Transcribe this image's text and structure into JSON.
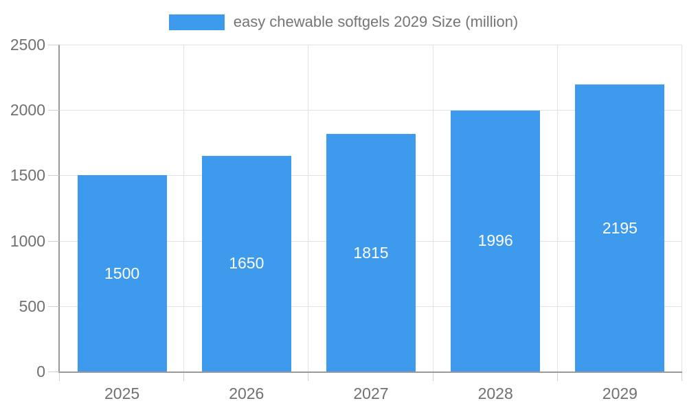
{
  "chart_data": {
    "type": "bar",
    "title": "easy chewable softgels 2029 Size (million)",
    "legend": [
      "easy chewable softgels 2029 Size (million)"
    ],
    "legend_position": "top",
    "categories": [
      "2025",
      "2026",
      "2027",
      "2028",
      "2029"
    ],
    "series": [
      {
        "name": "easy chewable softgels 2029 Size (million)",
        "values": [
          1500,
          1650,
          1815,
          1996,
          2195
        ]
      }
    ],
    "bar_labels": [
      "1500",
      "1650",
      "1815",
      "1996",
      "2195"
    ],
    "xlabel": "",
    "ylabel": "",
    "ylim": [
      0,
      2500
    ],
    "yticks": [
      0,
      500,
      1000,
      1500,
      2000,
      2500
    ],
    "grid": true,
    "colors": {
      "bar": "#3D9AED",
      "bar_label_text": "#FFFFFF",
      "gridline": "#E2E2E2",
      "axis_line": "#9A9A9A",
      "tick_mark": "#CFCFCF",
      "axis_text": "#707070",
      "legend_text": "#757575",
      "background": "#FFFFFF"
    }
  }
}
